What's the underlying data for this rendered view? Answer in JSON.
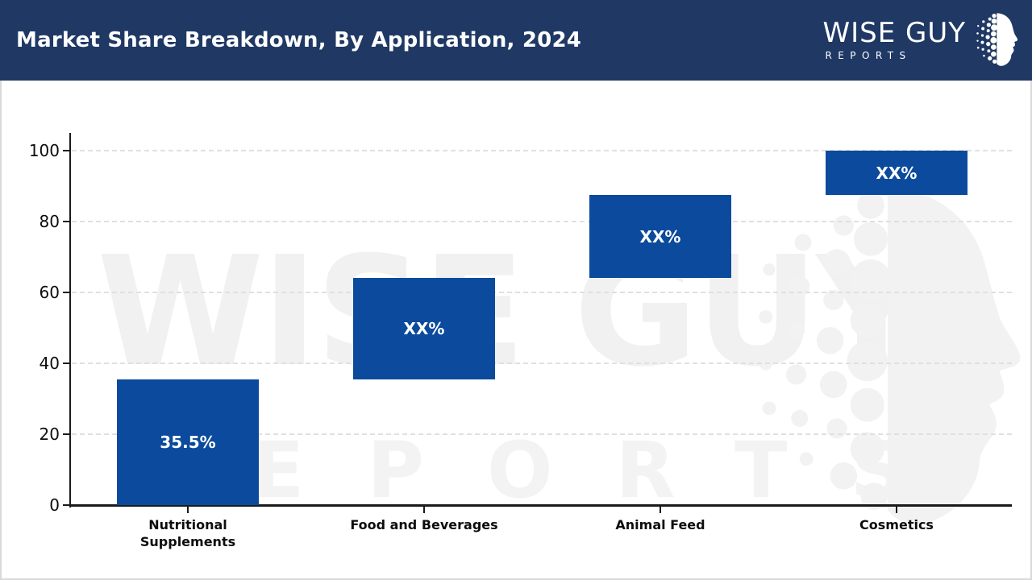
{
  "header": {
    "title": "Market Share Breakdown, By Application, 2024",
    "brand_line1": "WISE GUY",
    "brand_line2": "REPORTS",
    "bg_color": "#1f3864"
  },
  "watermark": {
    "line1": "WISE GUY",
    "line2": "REPORTS"
  },
  "icons": {
    "brand_head": "dotted-head-profile",
    "watermark_head": "dotted-head-profile"
  },
  "chart_data": {
    "type": "bar",
    "subtype": "floating-waterfall",
    "title": "Market Share Breakdown, By Application, 2024",
    "xlabel": "",
    "ylabel": "",
    "categories": [
      "Nutritional Supplements",
      "Food and Beverages",
      "Animal Feed",
      "Cosmetics"
    ],
    "tick_labels": [
      "Nutritional\nSupplements",
      "Food and Beverages",
      "Animal Feed",
      "Cosmetics"
    ],
    "bars": [
      {
        "category": "Nutritional Supplements",
        "start": 0,
        "end": 35.5,
        "label": "35.5%"
      },
      {
        "category": "Food and Beverages",
        "start": 35.5,
        "end": 64,
        "label": "XX%"
      },
      {
        "category": "Animal Feed",
        "start": 64,
        "end": 87.5,
        "label": "XX%"
      },
      {
        "category": "Cosmetics",
        "start": 87.5,
        "end": 100,
        "label": "XX%"
      }
    ],
    "ylim": [
      0,
      105
    ],
    "yticks": [
      0,
      20,
      40,
      60,
      80,
      100
    ],
    "grid": "horizontal-dashed",
    "legend": "none",
    "bar_color": "#0b4a9c",
    "bar_label_color": "#ffffff",
    "gridline_color": "#e0e0e0",
    "axis_color": "#1a1a1a"
  }
}
